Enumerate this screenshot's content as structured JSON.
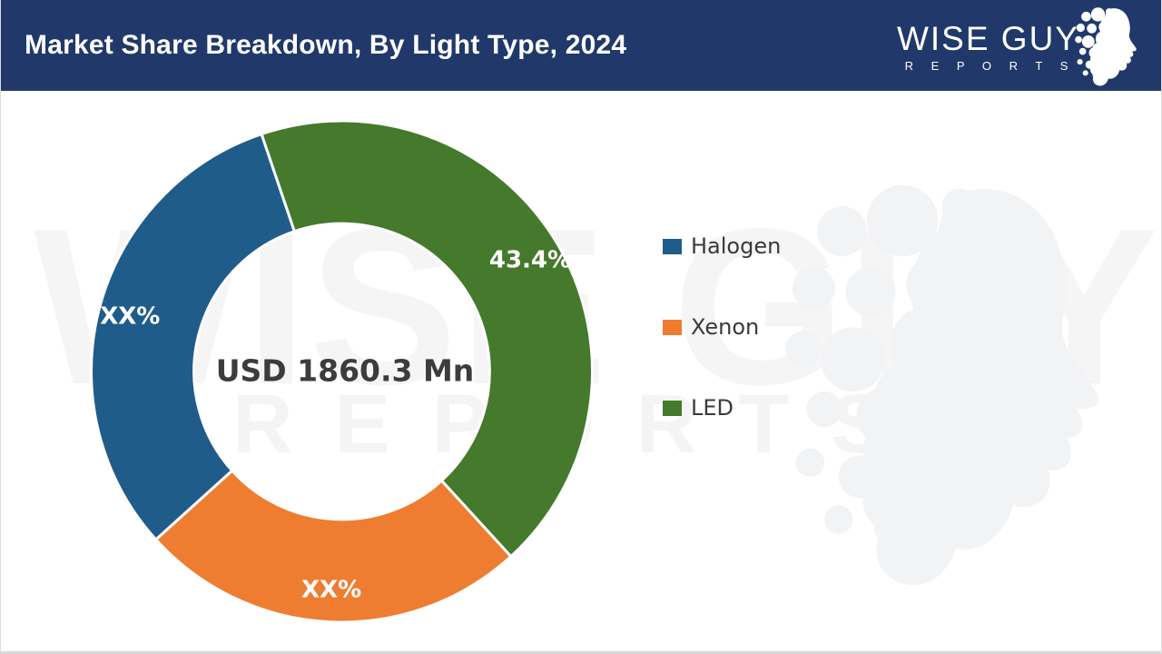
{
  "header": {
    "title": "Market Share Breakdown, By Light Type, 2024",
    "bg_color": "#20396a",
    "logo": {
      "line1": "WISE GUY",
      "line2": "R E P O R T S",
      "icon": "face-dots-icon"
    }
  },
  "chart_data": {
    "type": "pie",
    "subtype": "donut",
    "title": "Market Share Breakdown, By Light Type, 2024",
    "center_label": "USD 1860.3 Mn",
    "start_angle_deg": -18.7,
    "direction": "clockwise",
    "inner_radius_ratio": 0.59,
    "segments": [
      {
        "name": "LED",
        "value_pct": 43.4,
        "label": "43.4%",
        "color": "#45792c"
      },
      {
        "name": "Xenon",
        "value_pct": 25.1,
        "label": "XX%",
        "color": "#ef7d31"
      },
      {
        "name": "Halogen",
        "value_pct": 31.5,
        "label": "XX%",
        "color": "#1f5c8a"
      }
    ],
    "legend_position": "right",
    "legend": [
      {
        "label": "Halogen",
        "color": "#1f5c8a"
      },
      {
        "label": "Xenon",
        "color": "#ef7d31"
      },
      {
        "label": "LED",
        "color": "#45792c"
      }
    ]
  },
  "watermark": {
    "line1": "WISE GUY",
    "line2": "REPORTS",
    "icon": "face-dots-watermark"
  }
}
